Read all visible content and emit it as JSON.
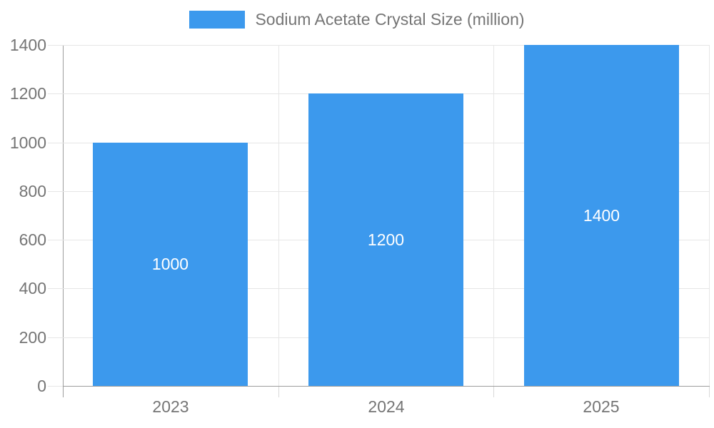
{
  "legend": {
    "label": "Sodium Acetate Crystal Size (million)"
  },
  "colors": {
    "bar": "#3C99ED",
    "grid": "#e6e6e6",
    "axis": "#9e9e9e",
    "tick": "#d9d9d9",
    "text": "#757575",
    "value_label": "#ffffff"
  },
  "chart_data": {
    "type": "bar",
    "categories": [
      "2023",
      "2024",
      "2025"
    ],
    "series": [
      {
        "name": "Sodium Acetate Crystal Size (million)",
        "values": [
          1000,
          1200,
          1400
        ]
      }
    ],
    "bar_value_labels": [
      "1000",
      "1200",
      "1400"
    ],
    "title": "",
    "xlabel": "",
    "ylabel": "",
    "ylim": [
      0,
      1400
    ],
    "yticks": [
      0,
      200,
      400,
      600,
      800,
      1000,
      1200,
      1400
    ],
    "grid": true,
    "legend_position": "top-center"
  }
}
